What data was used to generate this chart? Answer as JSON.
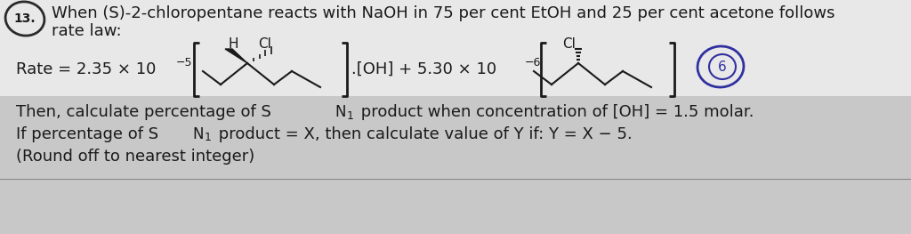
{
  "background_color": "#e8e8e8",
  "mol_area_bg": "#f0f0f0",
  "text_color": "#1a1a1a",
  "line1": "When (S)-2-chloropentane reacts with NaOH in 75 per cent EtOH and 25 per cent acetone follows",
  "line2": "rate law:",
  "line3_pre": "Then, calculate percentage of S",
  "line3_sub": "N",
  "line3_subsub": "1",
  "line3_post": "1 product when concentration of [OH] = 1.5 molar.",
  "line4_pre": "If percentage of S",
  "line4_sub": "N",
  "line4_subsub": "1",
  "line4_post": "1 product = X, then calculate value of Y if: Y = X − 5.",
  "line5": "(Round off to nearest integer)",
  "font_size_main": 13,
  "font_size_mol": 11,
  "font_size_sup": 9
}
